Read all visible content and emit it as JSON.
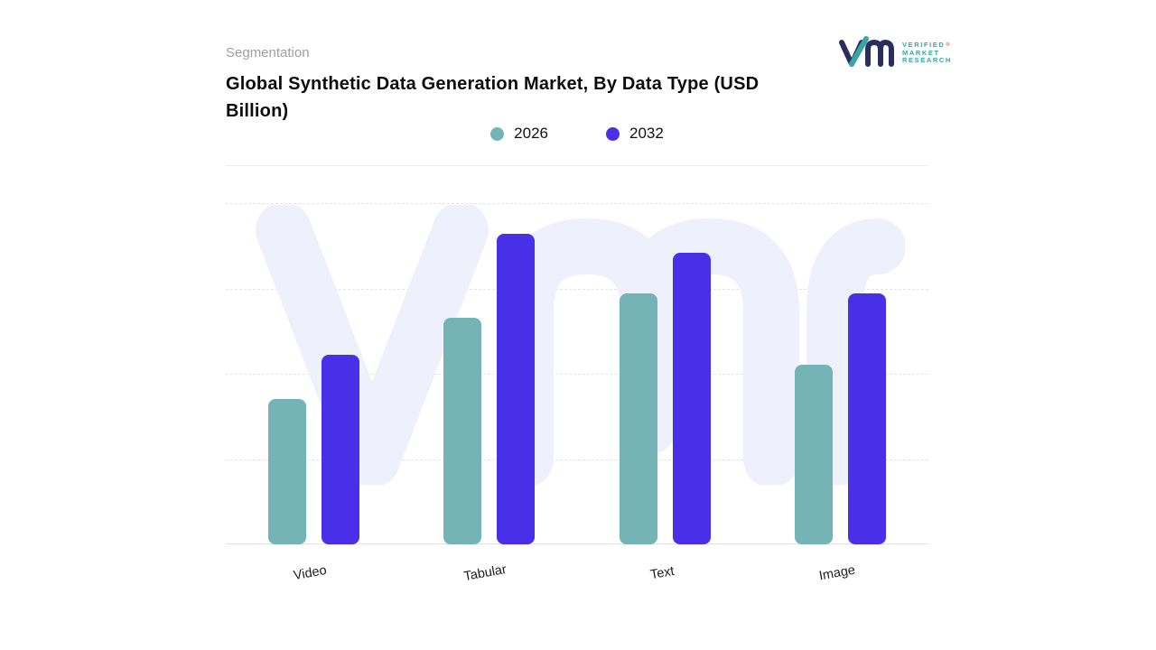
{
  "header": {
    "eyebrow": "Segmentation",
    "title": "Global Synthetic Data Generation Market, By Data Type (USD Billion)"
  },
  "logo": {
    "lines": [
      "VERIFIED",
      "MARKET",
      "RESEARCH"
    ],
    "registered_mark": "®",
    "navy": "#2b2e5d",
    "teal": "#38a7a4"
  },
  "colors": {
    "series_2026": "#74b4b7",
    "series_2032": "#4a2fe8",
    "watermark": "#eef0fb",
    "gridline": "#e3e3e8"
  },
  "chart_data": {
    "type": "bar",
    "title": "Global Synthetic Data Generation Market, By Data Type (USD Billion)",
    "categories": [
      "Video",
      "Tabular",
      "Text",
      "Image"
    ],
    "series": [
      {
        "name": "2026",
        "color": "#74b4b7",
        "values": [
          47,
          73,
          81,
          58
        ]
      },
      {
        "name": "2032",
        "color": "#4a2fe8",
        "values": [
          61,
          100,
          94,
          81
        ]
      }
    ],
    "xlabel": "",
    "ylabel": "USD Billion",
    "ylim": [
      0,
      110
    ],
    "grid": "dashed-horizontal",
    "legend_position": "top-center",
    "legend_entries": [
      "2026",
      "2032"
    ]
  }
}
